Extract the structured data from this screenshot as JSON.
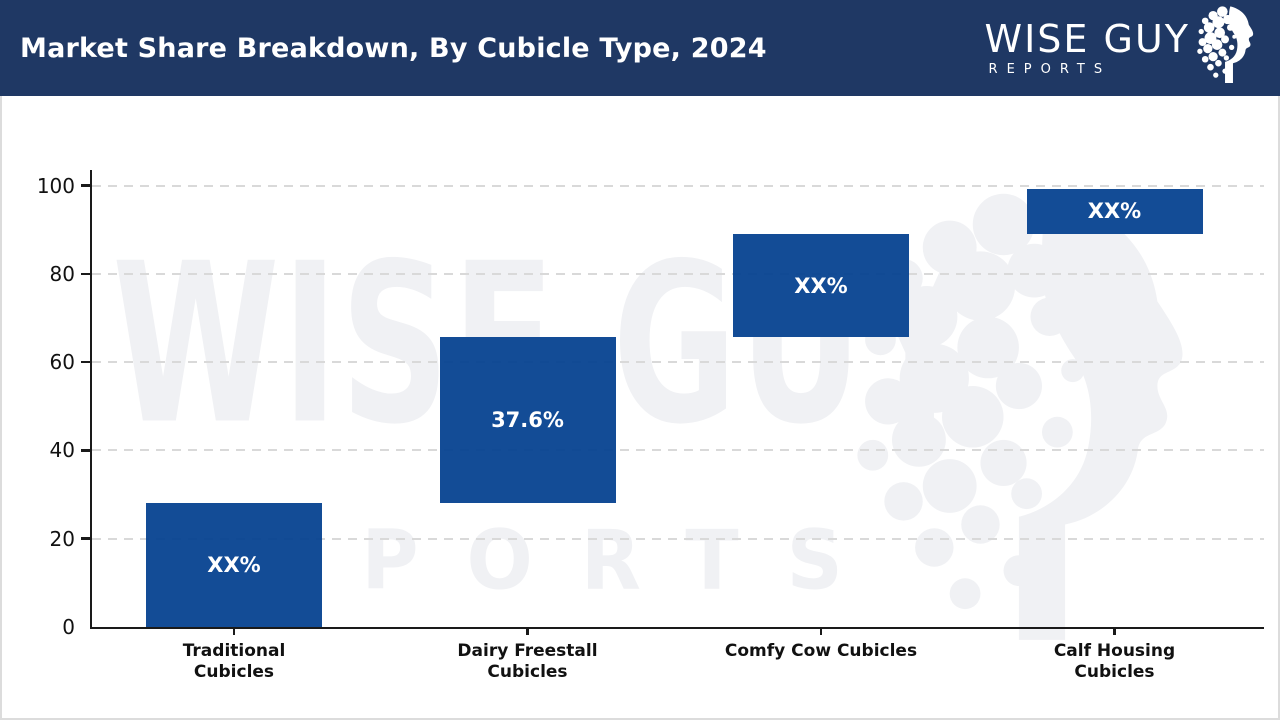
{
  "header": {
    "title": "Market Share Breakdown, By Cubicle Type, 2024",
    "logo": {
      "line1": "WISE GUY",
      "line2": "REPORTS"
    }
  },
  "watermark": {
    "line1": "WISE GUY",
    "line2": "REPORTS"
  },
  "chart_data": {
    "type": "bar",
    "subtype": "floating-waterfall",
    "title": "Market Share Breakdown, By Cubicle Type, 2024",
    "categories": [
      [
        "Traditional",
        "Cubicles"
      ],
      [
        "Dairy Freestall",
        "Cubicles"
      ],
      [
        "Comfy Cow Cubicles"
      ],
      [
        "Calf Housing",
        "Cubicles"
      ]
    ],
    "series": [
      {
        "name": "Traditional Cubicles",
        "start": 0,
        "end": 28,
        "label": "XX%"
      },
      {
        "name": "Dairy Freestall Cubicles",
        "start": 28,
        "end": 65.6,
        "label": "37.6%"
      },
      {
        "name": "Comfy Cow Cubicles",
        "start": 65.6,
        "end": 89.1,
        "label": "XX%"
      },
      {
        "name": "Calf Housing Cubicles",
        "start": 89.1,
        "end": 99.2,
        "label": "XX%"
      }
    ],
    "yticks": [
      0,
      20,
      40,
      60,
      80,
      100
    ],
    "ylim": [
      0,
      103.5
    ],
    "xlabel": "",
    "ylabel": "",
    "grid": "horizontal-dashed",
    "legend": "none",
    "bar_color": "#04418F"
  },
  "colors": {
    "header_bg": "#1F3864",
    "bar": "#04418F",
    "bar_label": "#FFFFFF",
    "grid": "#D9D9D9",
    "axis": "#1A1A1A",
    "tick_label": "#111111",
    "watermark": "#F0F1F4",
    "page_border": "#DCDCDC"
  }
}
